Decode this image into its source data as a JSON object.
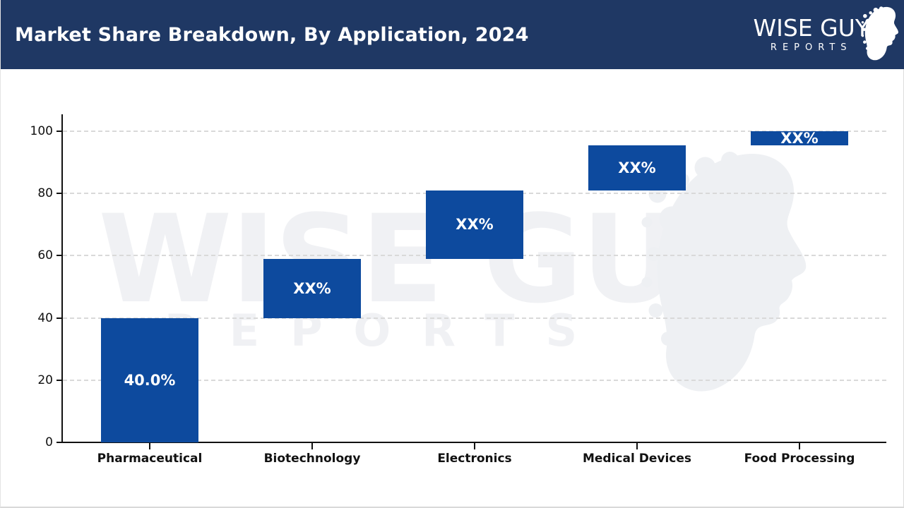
{
  "header": {
    "title": "Market Share Breakdown, By Application, 2024",
    "bg_color": "#1f3864",
    "logo": {
      "line1": "WISE GUY",
      "line2": "REPORTS"
    }
  },
  "watermark": {
    "line1": "WISE GUY",
    "line2": "REPORTS"
  },
  "chart_data": {
    "type": "bar",
    "subtype": "waterfall",
    "title": "Market Share Breakdown, By Application, 2024",
    "categories": [
      "Pharmaceutical",
      "Biotechnology",
      "Electronics",
      "Medical Devices",
      "Food Processing"
    ],
    "series": [
      {
        "name": "Market Share (%)",
        "starts": [
          0,
          40,
          59,
          81,
          95.5
        ],
        "values": [
          40,
          19,
          22,
          14.5,
          4.5
        ]
      }
    ],
    "bar_labels": [
      "40.0%",
      "XX%",
      "XX%",
      "XX%",
      "XX%"
    ],
    "yticks": [
      0,
      20,
      40,
      60,
      80,
      100
    ],
    "ylim": [
      0,
      105
    ],
    "xlabel": "",
    "ylabel": "",
    "grid": "horizontal-dashed",
    "legend": "none",
    "bar_color": "#0d4a9e",
    "gridline_color": "#d9d9d9",
    "axis_color": "#111111"
  }
}
